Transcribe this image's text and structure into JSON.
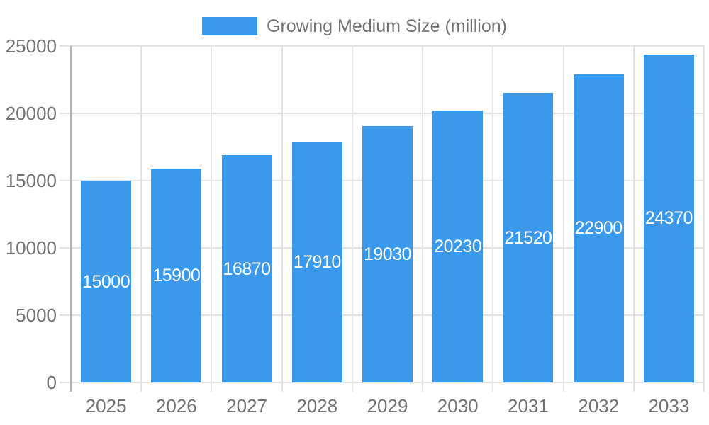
{
  "legend": {
    "label": "Growing Medium Size (million)"
  },
  "chart_data": {
    "type": "bar",
    "title": "",
    "xlabel": "",
    "ylabel": "",
    "categories": [
      "2025",
      "2026",
      "2027",
      "2028",
      "2029",
      "2030",
      "2031",
      "2032",
      "2033"
    ],
    "series": [
      {
        "name": "Growing Medium Size (million)",
        "values": [
          15000,
          15900,
          16870,
          17910,
          19030,
          20230,
          21520,
          22900,
          24370
        ]
      }
    ],
    "ylim": [
      0,
      25000
    ],
    "yticks": [
      0,
      5000,
      10000,
      15000,
      20000,
      25000
    ],
    "grid": true,
    "legend_position": "top",
    "value_labels": "inside-center",
    "colors": {
      "bar": "#3b99ec",
      "bar_label": "#ffffff",
      "axis_text": "#737373",
      "grid_line": "#e2e2e2",
      "axis_line": "#b3b3b3",
      "background": "#ffffff"
    }
  }
}
